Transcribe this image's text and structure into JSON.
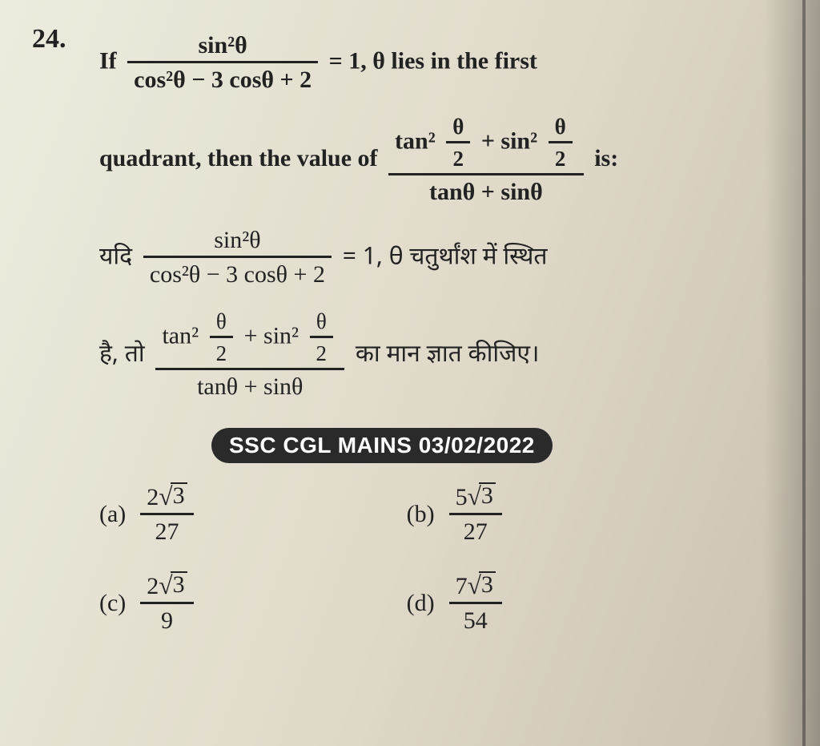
{
  "question_number": "24.",
  "eng1_prefix": "If ",
  "eng1_suffix": " = 1, θ lies in the first",
  "eng2_prefix": "quadrant, then the value of ",
  "eng2_suffix": " is:",
  "hin1_prefix": "यदि ",
  "hin1_suffix": " = 1, θ चतुर्थांश में स्थित",
  "hin2_prefix": "है, तो ",
  "hin2_suffix": " का मान ज्ञात कीजिए।",
  "main_frac": {
    "num": "sin²θ",
    "den": "cos²θ − 3 cosθ + 2"
  },
  "target_frac": {
    "num_html": "tan² <span class='frac half'><span class='num'>θ</span><span class='den'>2</span></span> + sin² <span class='frac half'><span class='num'>θ</span><span class='den'>2</span></span>",
    "den": "tanθ + sinθ"
  },
  "tag": "SSC CGL MAINS 03/02/2022",
  "options": {
    "a": {
      "label": "(a)",
      "num_pre": "2",
      "num_root": "3",
      "den": "27"
    },
    "b": {
      "label": "(b)",
      "num_pre": "5",
      "num_root": "3",
      "den": "27"
    },
    "c": {
      "label": "(c)",
      "num_pre": "2",
      "num_root": "3",
      "den": "9"
    },
    "d": {
      "label": "(d)",
      "num_pre": "7",
      "num_root": "3",
      "den": "54"
    }
  },
  "colors": {
    "text": "#222222",
    "tag_bg": "#2a2a2a",
    "tag_fg": "#ffffff",
    "page_bg_light": "#ececde",
    "page_bg_dark": "#c8c0b0"
  },
  "fonts": {
    "body_family": "Times New Roman serif",
    "body_size_pt": 22,
    "tag_family": "Arial sans-serif",
    "tag_size_pt": 20
  }
}
